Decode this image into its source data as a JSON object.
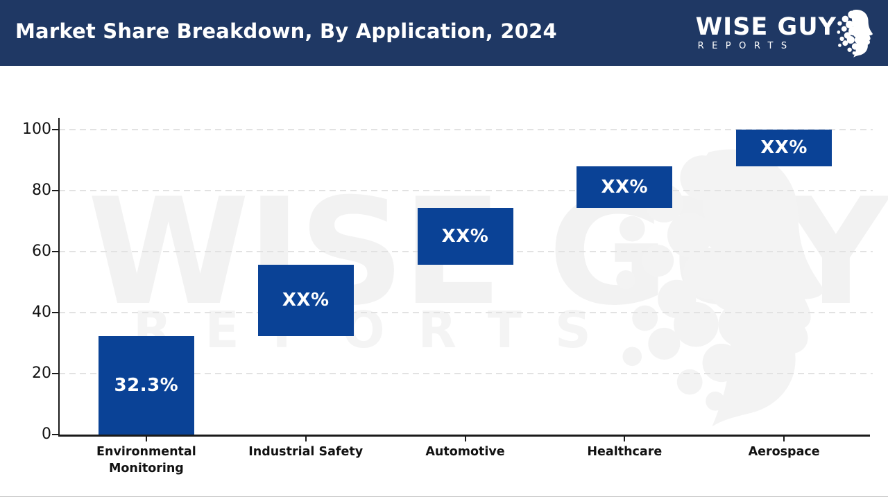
{
  "header": {
    "title": "Market Share Breakdown, By Application, 2024",
    "bg_color": "#1f3864",
    "text_color": "#ffffff",
    "logo": {
      "title": "WISE GUY",
      "subtitle": "REPORTS"
    }
  },
  "watermark": {
    "line1": "WISE GUY",
    "line2": "REPORTS"
  },
  "chart_data": {
    "type": "bar",
    "subtype": "waterfall",
    "title": "Market Share Breakdown, By Application, 2024",
    "categories": [
      "Environmental Monitoring",
      "Industrial Safety",
      "Automotive",
      "Healthcare",
      "Aerospace"
    ],
    "segments": [
      {
        "category": "Environmental Monitoring",
        "start": 0,
        "end": 32.3,
        "label": "32.3%"
      },
      {
        "category": "Industrial Safety",
        "start": 32.3,
        "end": 55.7,
        "label": "XX%"
      },
      {
        "category": "Automotive",
        "start": 55.7,
        "end": 74.3,
        "label": "XX%"
      },
      {
        "category": "Healthcare",
        "start": 74.3,
        "end": 88.0,
        "label": "XX%"
      },
      {
        "category": "Aerospace",
        "start": 88.0,
        "end": 100.0,
        "label": "XX%"
      }
    ],
    "ylim": [
      0,
      100
    ],
    "yticks": [
      0,
      20,
      40,
      60,
      80,
      100
    ],
    "grid": "horizontal-dashed",
    "legend": "none",
    "bar_color": "#0a4296",
    "bar_label_color": "#ffffff",
    "axis_color": "#1a1a1a",
    "gridline_color": "#e2e2e2",
    "watermark_color": "#f2f2f2"
  }
}
